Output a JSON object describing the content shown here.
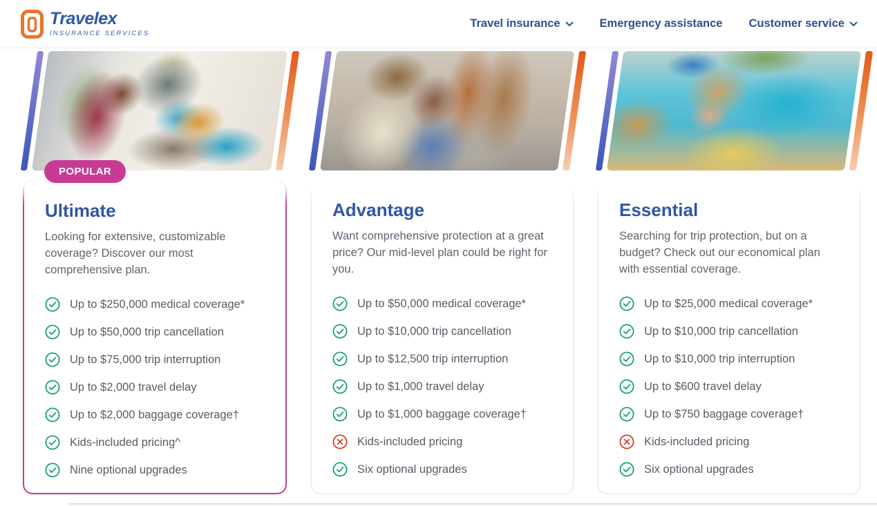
{
  "brand": {
    "name": "Travelex",
    "tagline": "INSURANCE SERVICES"
  },
  "nav": {
    "items": [
      {
        "label": "Travel insurance",
        "has_dropdown": true
      },
      {
        "label": "Emergency assistance",
        "has_dropdown": false
      },
      {
        "label": "Customer service",
        "has_dropdown": true
      }
    ]
  },
  "colors": {
    "nav_blue": "#2d4f8f",
    "title_blue": "#3156a5",
    "badge_pink": "#c93a94",
    "highlight_border": "#bc4198",
    "card_border": "#e2e4e9",
    "check_green": "#17a06d",
    "cross_red": "#d93a2b",
    "logo_orange": "#e8742f",
    "accent_purple_stripe": "#6672cb",
    "accent_orange_stripe": "#e25a1c"
  },
  "cards": [
    {
      "id": "ultimate",
      "badge": "POPULAR",
      "highlighted": true,
      "title": "Ultimate",
      "description": "Looking for extensive, customizable coverage? Discover our most comprehensive plan.",
      "photo": "family-packing-suitcase-photo",
      "features": [
        {
          "icon": "check",
          "text": "Up to $250,000 medical coverage*"
        },
        {
          "icon": "check",
          "text": "Up to $50,000 trip cancellation"
        },
        {
          "icon": "check",
          "text": "Up to $75,000 trip interruption"
        },
        {
          "icon": "check",
          "text": "Up to $2,000 travel delay"
        },
        {
          "icon": "check",
          "text": "Up to $2,000 baggage coverage†"
        },
        {
          "icon": "check",
          "text": "Kids-included pricing^"
        },
        {
          "icon": "check",
          "text": "Nine optional upgrades"
        }
      ]
    },
    {
      "id": "advantage",
      "badge": "",
      "highlighted": false,
      "title": "Advantage",
      "description": "Want comprehensive protection at a great price? Our mid-level plan could be right for you.",
      "photo": "senior-couple-city-photo",
      "features": [
        {
          "icon": "check",
          "text": "Up to $50,000 medical coverage*"
        },
        {
          "icon": "check",
          "text": "Up to $10,000 trip cancellation"
        },
        {
          "icon": "check",
          "text": "Up to $12,500 trip interruption"
        },
        {
          "icon": "check",
          "text": "Up to $1,000 travel delay"
        },
        {
          "icon": "check",
          "text": "Up to $1,000 baggage coverage†"
        },
        {
          "icon": "cross",
          "text": "Kids-included pricing"
        },
        {
          "icon": "check",
          "text": "Six optional upgrades"
        }
      ]
    },
    {
      "id": "essential",
      "badge": "",
      "highlighted": false,
      "title": "Essential",
      "description": "Searching for trip protection, but on a budget? Check out our economical plan with essential coverage.",
      "photo": "woman-relaxing-poolside-photo",
      "features": [
        {
          "icon": "check",
          "text": "Up to $25,000 medical coverage*"
        },
        {
          "icon": "check",
          "text": "Up to $10,000 trip cancellation"
        },
        {
          "icon": "check",
          "text": "Up to $10,000 trip interruption"
        },
        {
          "icon": "check",
          "text": "Up to $600 travel delay"
        },
        {
          "icon": "check",
          "text": "Up to $750 baggage coverage†"
        },
        {
          "icon": "cross",
          "text": "Kids-included pricing"
        },
        {
          "icon": "check",
          "text": "Six optional upgrades"
        }
      ]
    }
  ]
}
